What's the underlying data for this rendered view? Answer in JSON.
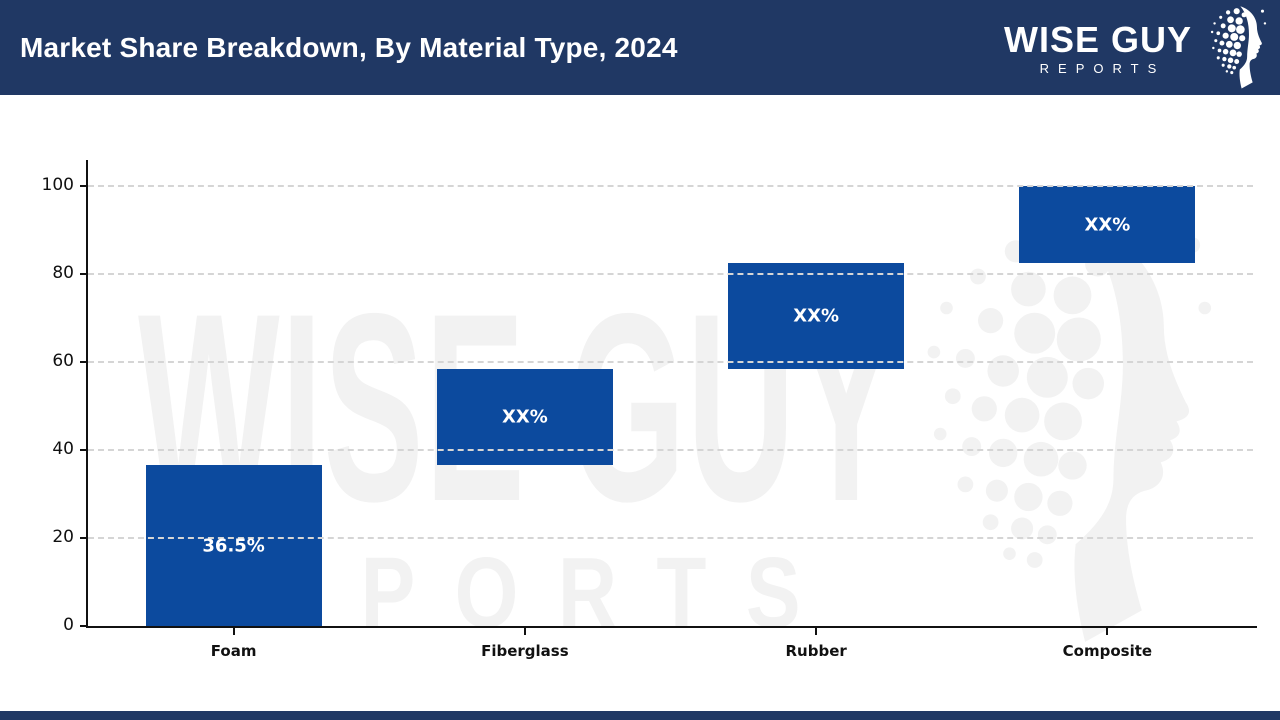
{
  "header": {
    "title": "Market Share Breakdown, By Material Type, 2024",
    "logo": {
      "line1": "WISE GUY",
      "line2": "REPORTS"
    }
  },
  "watermark": {
    "line1": "WISE GUY",
    "line2": "REPORTS"
  },
  "colors": {
    "header_bg": "#203864",
    "footer_bg": "#203864",
    "bar": "#0c4a9e",
    "bar_label": "#ffffff",
    "grid": "#d5d5d5",
    "axis": "#111111",
    "watermark": "#f2f2f2"
  },
  "chart_data": {
    "type": "bar",
    "subtype": "waterfall-stacked",
    "title": "Market Share Breakdown, By Material Type, 2024",
    "categories": [
      "Foam",
      "Fiberglass",
      "Rubber",
      "Composite"
    ],
    "bars": [
      {
        "category": "Foam",
        "start": 0,
        "end": 36.5,
        "label": "36.5%"
      },
      {
        "category": "Fiberglass",
        "start": 36.5,
        "end": 58.5,
        "label": "XX%"
      },
      {
        "category": "Rubber",
        "start": 58.5,
        "end": 82.5,
        "label": "XX%"
      },
      {
        "category": "Composite",
        "start": 82.5,
        "end": 100,
        "label": "XX%"
      }
    ],
    "xlabel": "",
    "ylabel": "",
    "ylim": [
      0,
      100
    ],
    "yticks": [
      0,
      20,
      40,
      60,
      80,
      100
    ],
    "grid": "horizontal-dashed",
    "legend": null
  }
}
